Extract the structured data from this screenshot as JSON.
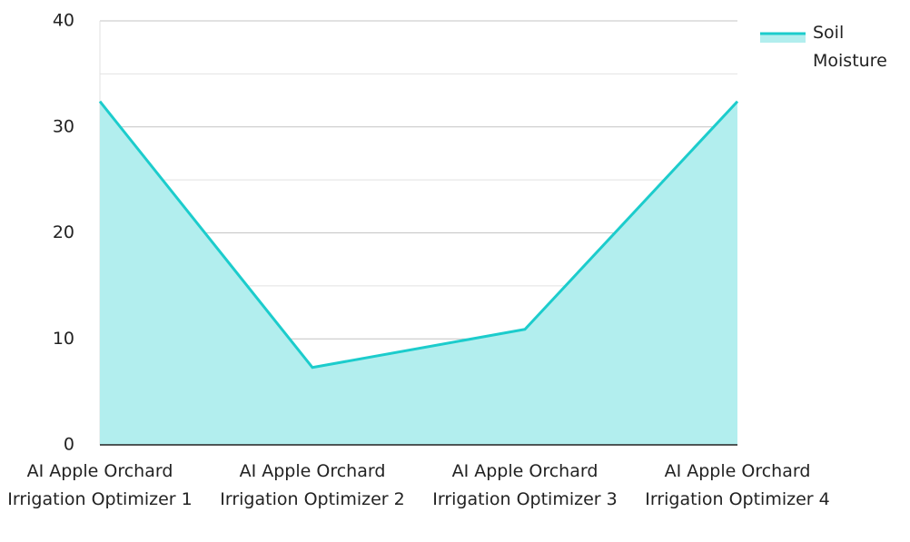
{
  "chart_data": {
    "type": "area",
    "categories": [
      "AI Apple Orchard Irrigation Optimizer 1",
      "AI Apple Orchard Irrigation Optimizer 2",
      "AI Apple Orchard Irrigation Optimizer 3",
      "AI Apple Orchard Irrigation Optimizer 4"
    ],
    "series": [
      {
        "name": "Soil Moisture",
        "color": "#1ccccc",
        "fill": "#b2eeee",
        "values": [
          32.4,
          7.3,
          10.9,
          32.4
        ]
      }
    ],
    "ylim": [
      0,
      40
    ],
    "yticks": [
      0,
      10,
      20,
      30,
      40
    ],
    "minor_yticks": [
      5,
      15,
      25,
      35
    ],
    "grid": true,
    "legend": "top-right"
  }
}
